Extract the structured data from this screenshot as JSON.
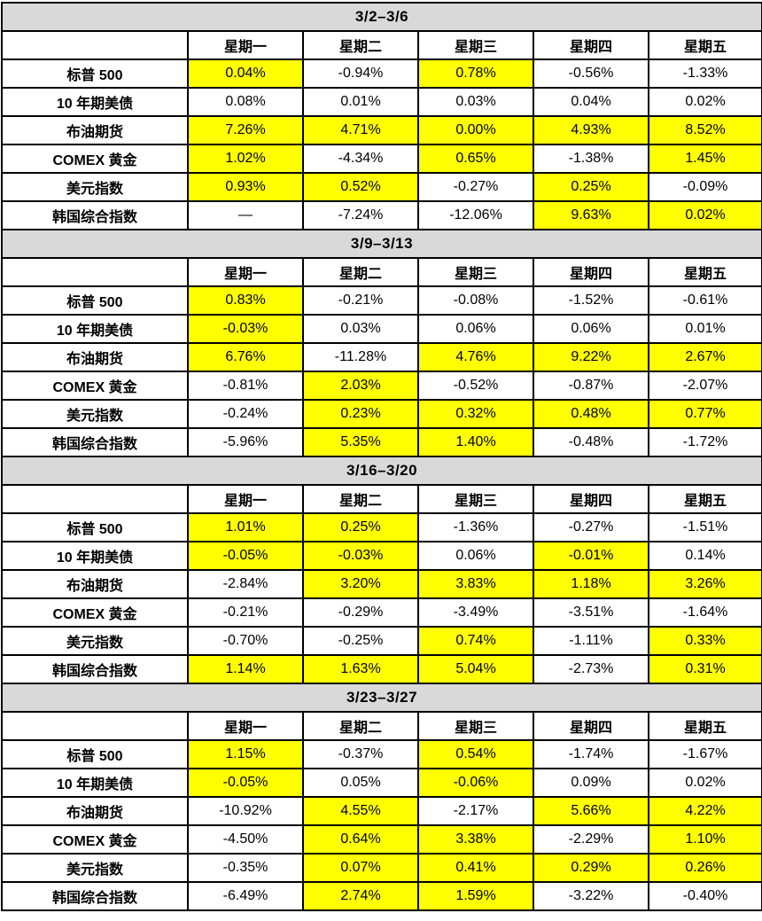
{
  "colors": {
    "page_bg": "#FFFFFF",
    "border": "#000000",
    "section_header_bg": "#D9D9D9",
    "highlight_bg": "#FFFF00",
    "text": "#000000"
  },
  "chart_data": [
    {
      "type": "table",
      "title": "3/2–3/6",
      "columns": [
        "星期一",
        "星期二",
        "星期三",
        "星期四",
        "星期五"
      ],
      "rows": [
        {
          "label": "标普 500",
          "values": [
            "0.04%",
            "-0.94%",
            "0.78%",
            "-0.56%",
            "-1.33%"
          ],
          "highlighted": [
            true,
            false,
            true,
            false,
            false
          ]
        },
        {
          "label": "10 年期美债",
          "values": [
            "0.08%",
            "0.01%",
            "0.03%",
            "0.04%",
            "0.02%"
          ],
          "highlighted": [
            false,
            false,
            false,
            false,
            false
          ]
        },
        {
          "label": "布油期货",
          "values": [
            "7.26%",
            "4.71%",
            "0.00%",
            "4.93%",
            "8.52%"
          ],
          "highlighted": [
            true,
            true,
            true,
            true,
            true
          ]
        },
        {
          "label": "COMEX 黄金",
          "values": [
            "1.02%",
            "-4.34%",
            "0.65%",
            "-1.38%",
            "1.45%"
          ],
          "highlighted": [
            true,
            false,
            true,
            false,
            true
          ]
        },
        {
          "label": "美元指数",
          "values": [
            "0.93%",
            "0.52%",
            "-0.27%",
            "0.25%",
            "-0.09%"
          ],
          "highlighted": [
            true,
            true,
            false,
            true,
            false
          ]
        },
        {
          "label": "韩国综合指数",
          "values": [
            "—",
            "-7.24%",
            "-12.06%",
            "9.63%",
            "0.02%"
          ],
          "highlighted": [
            false,
            false,
            false,
            true,
            true
          ]
        }
      ]
    },
    {
      "type": "table",
      "title": "3/9–3/13",
      "columns": [
        "星期一",
        "星期二",
        "星期三",
        "星期四",
        "星期五"
      ],
      "rows": [
        {
          "label": "标普 500",
          "values": [
            "0.83%",
            "-0.21%",
            "-0.08%",
            "-1.52%",
            "-0.61%"
          ],
          "highlighted": [
            true,
            false,
            false,
            false,
            false
          ]
        },
        {
          "label": "10 年期美债",
          "values": [
            "-0.03%",
            "0.03%",
            "0.06%",
            "0.06%",
            "0.01%"
          ],
          "highlighted": [
            true,
            false,
            false,
            false,
            false
          ]
        },
        {
          "label": "布油期货",
          "values": [
            "6.76%",
            "-11.28%",
            "4.76%",
            "9.22%",
            "2.67%"
          ],
          "highlighted": [
            true,
            false,
            true,
            true,
            true
          ]
        },
        {
          "label": "COMEX 黄金",
          "values": [
            "-0.81%",
            "2.03%",
            "-0.52%",
            "-0.87%",
            "-2.07%"
          ],
          "highlighted": [
            false,
            true,
            false,
            false,
            false
          ]
        },
        {
          "label": "美元指数",
          "values": [
            "-0.24%",
            "0.23%",
            "0.32%",
            "0.48%",
            "0.77%"
          ],
          "highlighted": [
            false,
            true,
            true,
            true,
            true
          ]
        },
        {
          "label": "韩国综合指数",
          "values": [
            "-5.96%",
            "5.35%",
            "1.40%",
            "-0.48%",
            "-1.72%"
          ],
          "highlighted": [
            false,
            true,
            true,
            false,
            false
          ]
        }
      ]
    },
    {
      "type": "table",
      "title": "3/16–3/20",
      "columns": [
        "星期一",
        "星期二",
        "星期三",
        "星期四",
        "星期五"
      ],
      "rows": [
        {
          "label": "标普 500",
          "values": [
            "1.01%",
            "0.25%",
            "-1.36%",
            "-0.27%",
            "-1.51%"
          ],
          "highlighted": [
            true,
            true,
            false,
            false,
            false
          ]
        },
        {
          "label": "10 年期美债",
          "values": [
            "-0.05%",
            "-0.03%",
            "0.06%",
            "-0.01%",
            "0.14%"
          ],
          "highlighted": [
            true,
            true,
            false,
            true,
            false
          ]
        },
        {
          "label": "布油期货",
          "values": [
            "-2.84%",
            "3.20%",
            "3.83%",
            "1.18%",
            "3.26%"
          ],
          "highlighted": [
            false,
            true,
            true,
            true,
            true
          ]
        },
        {
          "label": "COMEX 黄金",
          "values": [
            "-0.21%",
            "-0.29%",
            "-3.49%",
            "-3.51%",
            "-1.64%"
          ],
          "highlighted": [
            false,
            false,
            false,
            false,
            false
          ]
        },
        {
          "label": "美元指数",
          "values": [
            "-0.70%",
            "-0.25%",
            "0.74%",
            "-1.11%",
            "0.33%"
          ],
          "highlighted": [
            false,
            false,
            true,
            false,
            true
          ]
        },
        {
          "label": "韩国综合指数",
          "values": [
            "1.14%",
            "1.63%",
            "5.04%",
            "-2.73%",
            "0.31%"
          ],
          "highlighted": [
            true,
            true,
            true,
            false,
            true
          ]
        }
      ]
    },
    {
      "type": "table",
      "title": "3/23–3/27",
      "columns": [
        "星期一",
        "星期二",
        "星期三",
        "星期四",
        "星期五"
      ],
      "rows": [
        {
          "label": "标普 500",
          "values": [
            "1.15%",
            "-0.37%",
            "0.54%",
            "-1.74%",
            "-1.67%"
          ],
          "highlighted": [
            true,
            false,
            true,
            false,
            false
          ]
        },
        {
          "label": "10 年期美债",
          "values": [
            "-0.05%",
            "0.05%",
            "-0.06%",
            "0.09%",
            "0.02%"
          ],
          "highlighted": [
            true,
            false,
            true,
            false,
            false
          ]
        },
        {
          "label": "布油期货",
          "values": [
            "-10.92%",
            "4.55%",
            "-2.17%",
            "5.66%",
            "4.22%"
          ],
          "highlighted": [
            false,
            true,
            false,
            true,
            true
          ]
        },
        {
          "label": "COMEX 黄金",
          "values": [
            "-4.50%",
            "0.64%",
            "3.38%",
            "-2.29%",
            "1.10%"
          ],
          "highlighted": [
            false,
            true,
            true,
            false,
            true
          ]
        },
        {
          "label": "美元指数",
          "values": [
            "-0.35%",
            "0.07%",
            "0.41%",
            "0.29%",
            "0.26%"
          ],
          "highlighted": [
            false,
            true,
            true,
            true,
            true
          ]
        },
        {
          "label": "韩国综合指数",
          "values": [
            "-6.49%",
            "2.74%",
            "1.59%",
            "-3.22%",
            "-0.40%"
          ],
          "highlighted": [
            false,
            true,
            true,
            false,
            false
          ]
        }
      ]
    }
  ]
}
